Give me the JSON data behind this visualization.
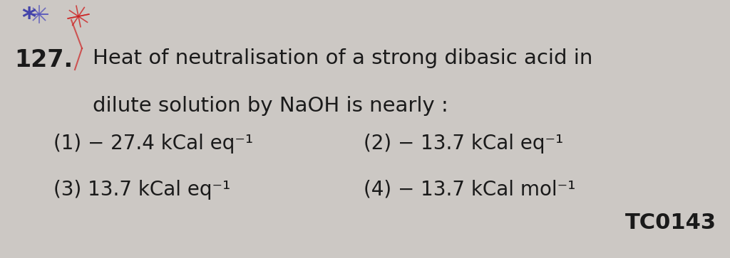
{
  "bg_color": "#ccc8c4",
  "question_number": "127.",
  "question_line1": "Heat of neutralisation of a strong dibasic acid in",
  "question_line2": "dilute solution by NaOH is nearly :",
  "option1": "(1) − 27.4 kCal eq⁻¹",
  "option2": "(2) − 13.7 kCal eq⁻¹",
  "option3": "(3) 13.7 kCal eq⁻¹",
  "option4": "(4) − 13.7 kCal mol⁻¹",
  "code": "TC0143",
  "text_color": "#1a1a1a",
  "font_size_question": 21,
  "font_size_options": 20,
  "font_size_number": 24,
  "font_size_code": 22
}
